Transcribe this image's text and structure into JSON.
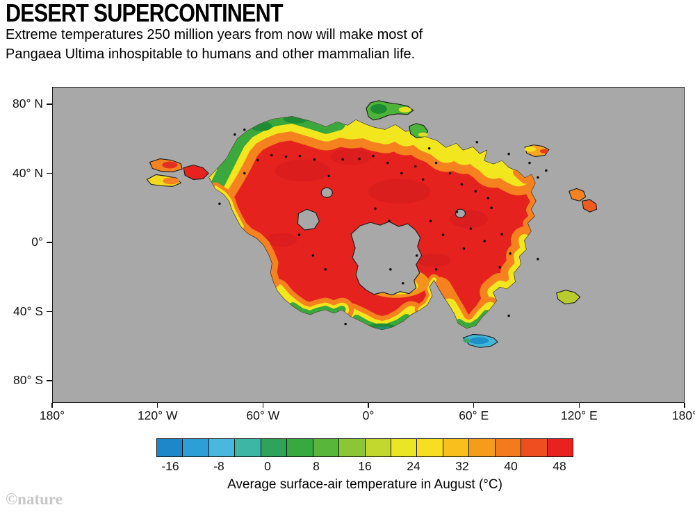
{
  "header": {
    "title": "DESERT SUPERCONTINENT",
    "subtitle_line1": "Extreme temperatures 250 million years from now will make most of",
    "subtitle_line2": "Pangaea Ultima inhospitable to humans and other mammalian life."
  },
  "chart_data": {
    "type": "heatmap",
    "subject": "Projected average surface-air temperature in August on the supercontinent Pangaea Ultima, 250 million years from now",
    "x_axis": {
      "ticks": [
        "180°",
        "120° W",
        "60° W",
        "0°",
        "60° E",
        "120° E",
        "180°"
      ]
    },
    "y_axis": {
      "ticks": [
        "80° N",
        "40° N",
        "0°",
        "40° S",
        "80° S"
      ]
    },
    "ocean_color": "#a8a8a8",
    "coastline_color": "#1a1a1a",
    "colorbar": {
      "caption": "Average surface-air temperature in August (°C)",
      "tick_labels": [
        "-16",
        "-8",
        "0",
        "8",
        "16",
        "24",
        "32",
        "40",
        "48"
      ],
      "min_label": -16,
      "max_label": 48,
      "degrees_per_cell": 4,
      "cell_colors": [
        "#1d87c9",
        "#2b9fd6",
        "#49b7de",
        "#3db6a6",
        "#2fa25c",
        "#37a93f",
        "#58b63a",
        "#8cc636",
        "#c3d82e",
        "#eae625",
        "#f8de20",
        "#f9c01d",
        "#f69c1b",
        "#f37a1d",
        "#ee4e20",
        "#e8231f"
      ]
    },
    "regions": [
      {
        "area": "continental interior (bulk of Pangaea Ultima)",
        "august_temp_c": "40 to 48"
      },
      {
        "area": "northern coastal fringe (about 60-75° N)",
        "august_temp_c": "8 to 24"
      },
      {
        "area": "southwestern and south-central coastal tips (about 35-50° S)",
        "august_temp_c": "8 to 24"
      },
      {
        "area": "southeastern peninsula tip",
        "august_temp_c": "8 to 24"
      },
      {
        "area": "far-southern island (about 55° S)",
        "august_temp_c": "-8 to 4"
      },
      {
        "area": "ocean and inland sea",
        "august_temp_c": "masked (gray, no data)"
      }
    ]
  },
  "footer": {
    "credit": "©nature"
  }
}
